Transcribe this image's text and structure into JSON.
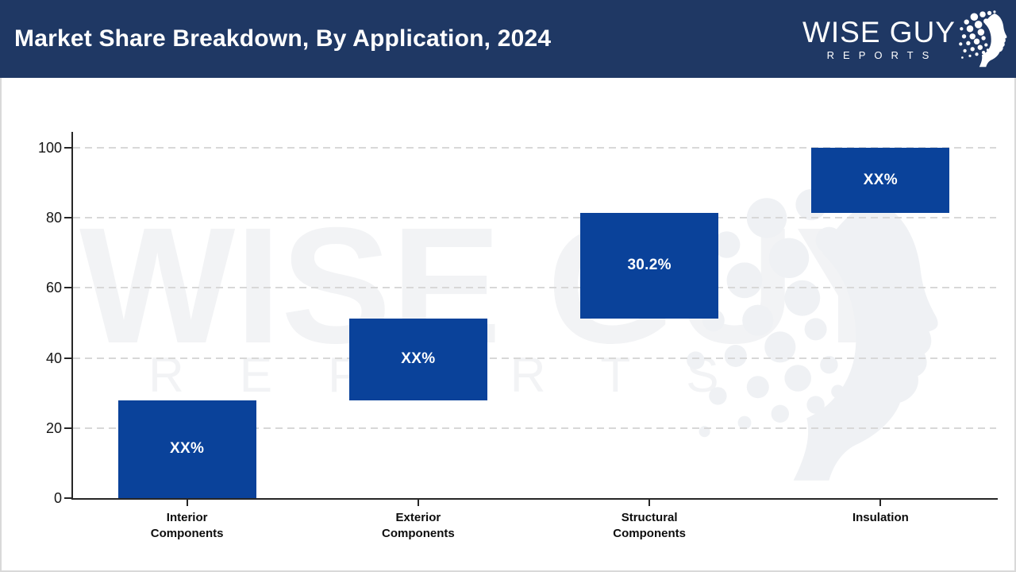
{
  "header": {
    "title": "Market Share Breakdown, By Application, 2024",
    "logo": {
      "wordmark": "WISE GUY",
      "sub": "REPORTS"
    }
  },
  "watermark": {
    "text": "WISE GUY",
    "sub": "REPORTS"
  },
  "colors": {
    "header_bg": "#1f3864",
    "bar": "#0a429a",
    "bar_label": "#ffffff",
    "grid": "#d8d8d8",
    "axis": "#262626",
    "watermark": "#f2f3f5",
    "border": "#d9d9d9",
    "tick_text": "#161616"
  },
  "chart_data": {
    "type": "bar",
    "subtype": "waterfall",
    "title": "Market Share Breakdown, By Application, 2024",
    "categories": [
      "Interior Components",
      "Exterior Components",
      "Structural Components",
      "Insulation"
    ],
    "category_lines": [
      [
        "Interior",
        "Components"
      ],
      [
        "Exterior",
        "Components"
      ],
      [
        "Structural",
        "Components"
      ],
      [
        "Insulation"
      ]
    ],
    "segments": [
      {
        "category": "Interior Components",
        "start": 0,
        "end": 27.9,
        "label": "XX%"
      },
      {
        "category": "Exterior Components",
        "start": 27.9,
        "end": 51.3,
        "label": "XX%"
      },
      {
        "category": "Structural Components",
        "start": 51.3,
        "end": 81.5,
        "label": "30.2%"
      },
      {
        "category": "Insulation",
        "start": 81.5,
        "end": 100,
        "label": "XX%"
      }
    ],
    "ylim": [
      0,
      100
    ],
    "yticks": [
      0,
      20,
      40,
      60,
      80,
      100
    ],
    "xlabel": "",
    "ylabel": "",
    "grid": "horizontal-dashed",
    "legend": "none"
  }
}
